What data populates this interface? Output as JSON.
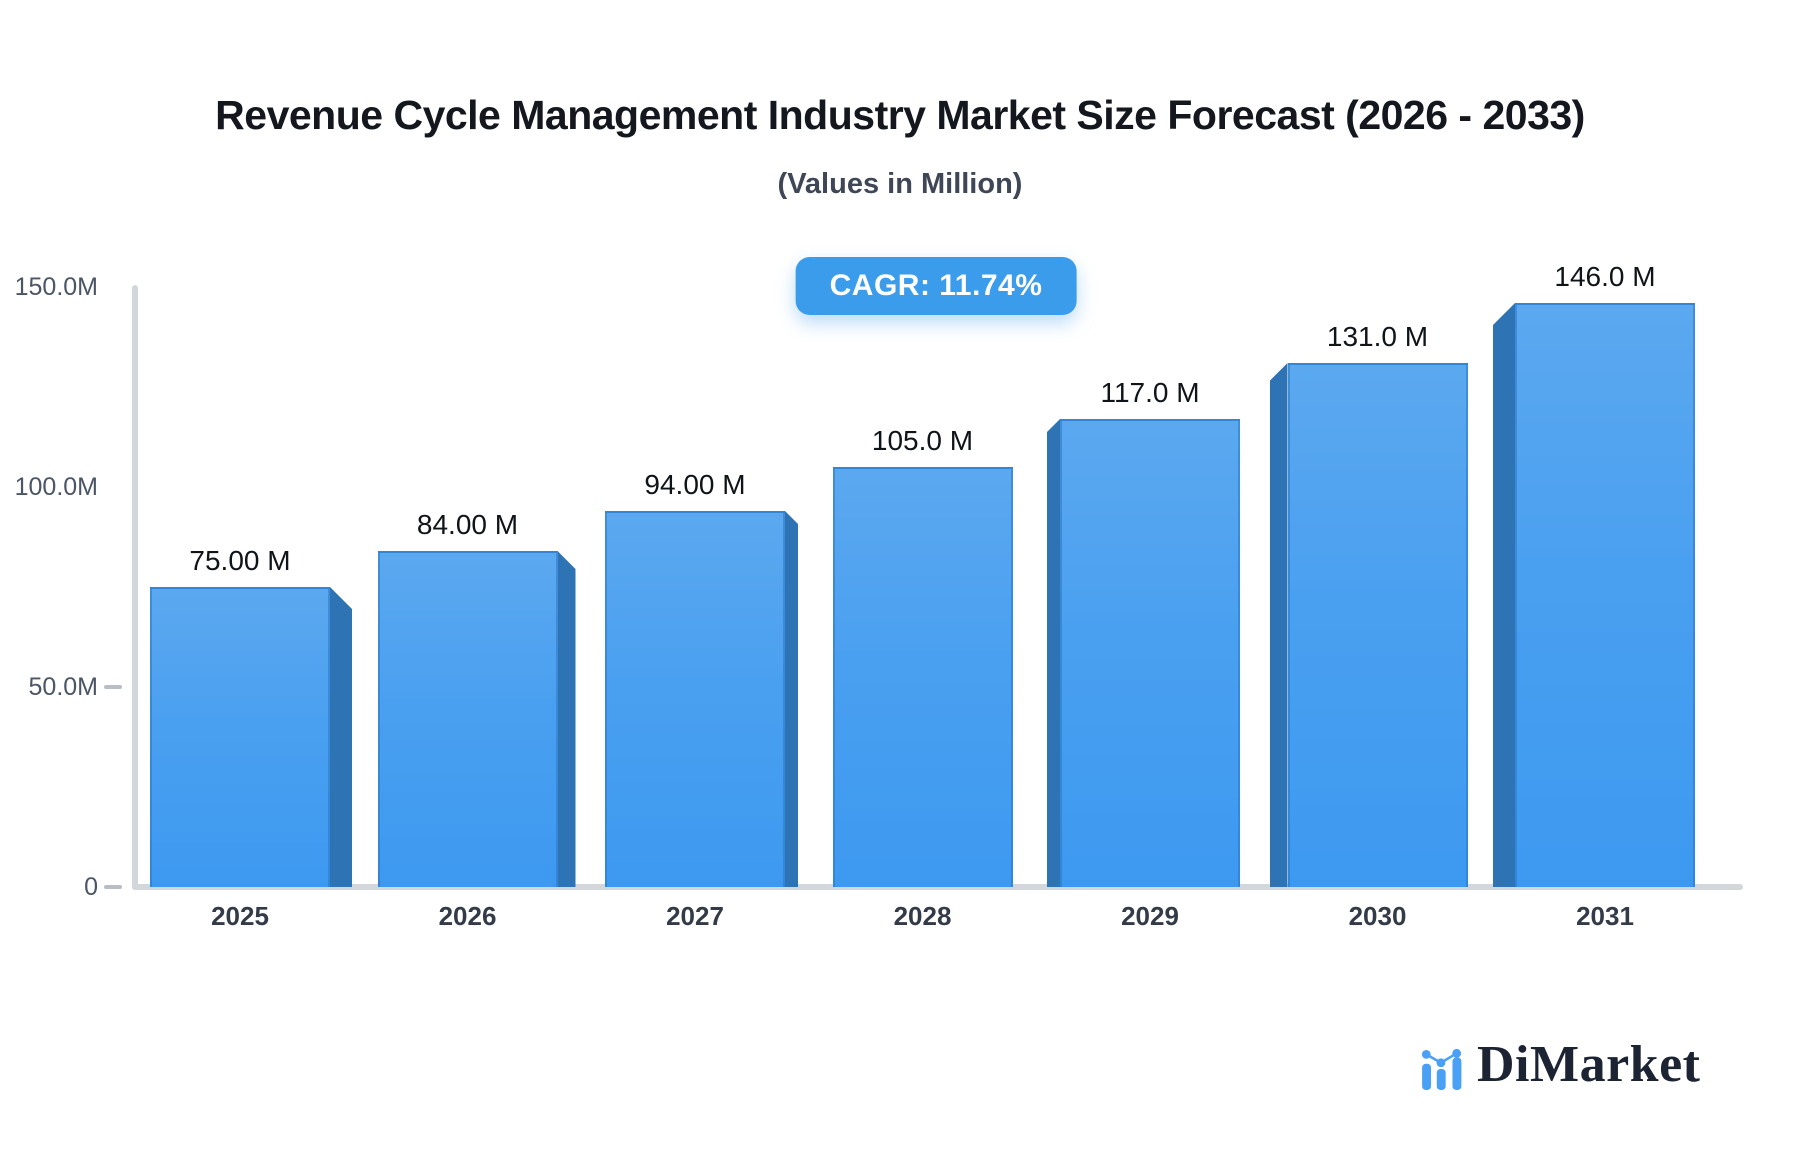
{
  "header": {
    "title": "Revenue Cycle Management Industry Market Size Forecast (2026 - 2033)",
    "subtitle": "(Values in Million)",
    "cagr_badge": "CAGR: 11.74%"
  },
  "chart_data": {
    "type": "bar",
    "title": "Revenue Cycle Management Industry Market Size Forecast (2026 - 2033)",
    "subtitle": "(Values in Million)",
    "unit": "Million",
    "categories": [
      "2025",
      "2026",
      "2027",
      "2028",
      "2029",
      "2030",
      "2031"
    ],
    "values": [
      75,
      84,
      94,
      105,
      117,
      131,
      146
    ],
    "value_labels": [
      "75.00 M",
      "84.00 M",
      "94.00 M",
      "105.0 M",
      "117.0 M",
      "131.0 M",
      "146.0 M"
    ],
    "cagr_percent": 11.74,
    "ylim": [
      0,
      150
    ],
    "y_ticks": [
      {
        "label": "150.0M",
        "value": 150,
        "dash": false
      },
      {
        "label": "100.0M",
        "value": 100,
        "dash": false
      },
      {
        "label": "50.0M",
        "value": 50,
        "dash": true
      },
      {
        "label": "0",
        "value": 0,
        "dash": true
      }
    ],
    "grid": false,
    "legend": false,
    "bar_style": "3d-perspective"
  },
  "colors": {
    "badge_bg": "#3b9ceb",
    "bar_front_top": "#5ba8ef",
    "bar_front_bottom": "#3d99f0",
    "bar_side": "#2e74b5",
    "axis": "#d3d6db",
    "title_text": "#14171d",
    "logo_text": "#1c2433",
    "logo_icon": "#4aa0f5"
  },
  "logo": {
    "text": "DiMarket",
    "icon": "bar-chart-dots-icon"
  }
}
